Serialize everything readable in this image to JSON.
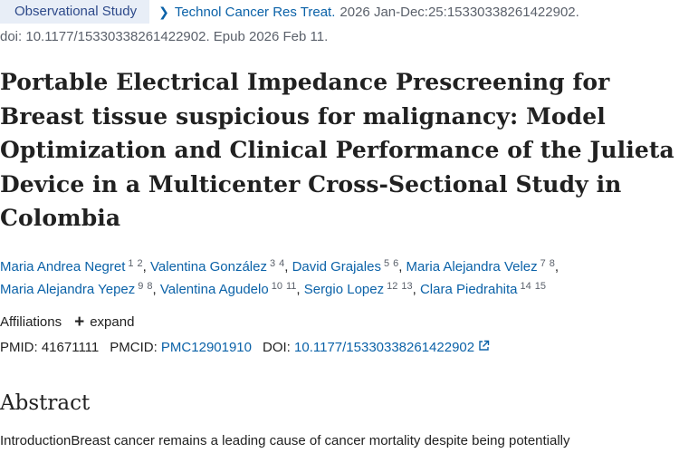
{
  "header": {
    "publication_type": "Observational Study",
    "journal": "Technol Cancer Res Treat.",
    "citation": "2026 Jan-Dec:25:15330338261422902.",
    "doi_line": "doi: 10.1177/15330338261422902. Epub 2026 Feb 11."
  },
  "title": "Portable Electrical Impedance Prescreening for Breast tissue suspicious for malignancy: Model Optimization and Clinical Performance of the Julieta Device in a Multicenter Cross-Sectional Study in Colombia",
  "authors": [
    {
      "name": "Maria Andrea Negret",
      "aff1": "1",
      "aff2": "2"
    },
    {
      "name": "Valentina González",
      "aff1": "3",
      "aff2": "4"
    },
    {
      "name": "David Grajales",
      "aff1": "5",
      "aff2": "6"
    },
    {
      "name": "Maria Alejandra Velez",
      "aff1": "7",
      "aff2": "8"
    },
    {
      "name": "Maria Alejandra Yepez",
      "aff1": "9",
      "aff2": "8"
    },
    {
      "name": "Valentina Agudelo",
      "aff1": "10",
      "aff2": "11"
    },
    {
      "name": "Sergio Lopez",
      "aff1": "12",
      "aff2": "13"
    },
    {
      "name": "Clara Piedrahita",
      "aff1": "14",
      "aff2": "15"
    }
  ],
  "affiliations": {
    "label": "Affiliations",
    "expand_label": "expand"
  },
  "identifiers": {
    "pmid_label": "PMID:",
    "pmid": "41671111",
    "pmcid_label": "PMCID:",
    "pmcid": "PMC12901910",
    "doi_label": "DOI:",
    "doi": "10.1177/15330338261422902"
  },
  "abstract": {
    "heading": "Abstract",
    "first_line": "IntroductionBreast cancer remains a leading cause of cancer mortality despite being potentially"
  },
  "icons": {
    "chevron": "chevron-right-icon",
    "expand": "plus-icon",
    "external": "external-link-icon"
  },
  "colors": {
    "link": "#0b62a8",
    "badge_bg": "#e8eef7",
    "badge_text": "#2e4a8a",
    "muted_text": "#5b616b",
    "text": "#212121"
  }
}
